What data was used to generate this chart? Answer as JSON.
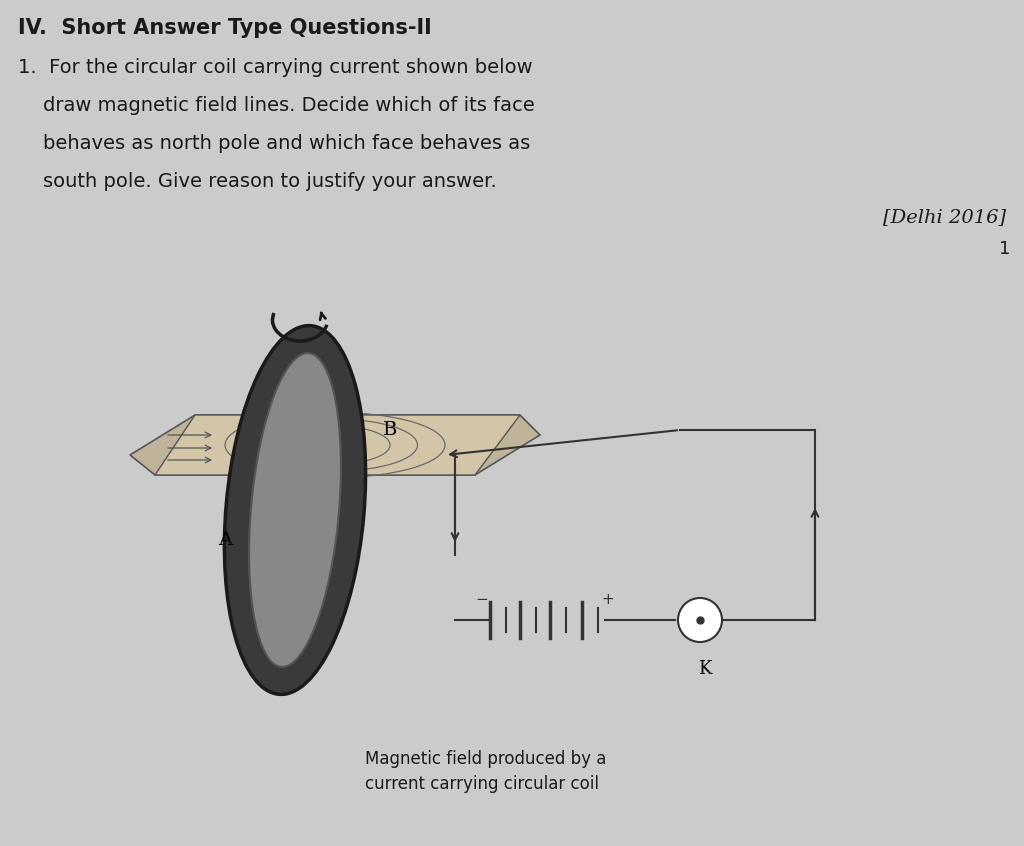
{
  "bg_color": "#cbcbcb",
  "title_bold": "IV.  Short Answer Type Questions-II",
  "q_line1": "1.  For the circular coil carrying current shown below",
  "q_line2": "    draw magnetic field lines. Decide which of its face",
  "q_line3": "    behaves as north pole and which face behaves as",
  "q_line4": "    south pole. Give reason to justify your answer.",
  "citation": "[Delhi 2016]",
  "caption_line1": "Magnetic field produced by a",
  "caption_line2": "current carrying circular coil",
  "label_A": "A",
  "label_B": "B",
  "label_K": "K",
  "title_fontsize": 15,
  "question_fontsize": 14,
  "citation_fontsize": 14,
  "caption_fontsize": 12
}
